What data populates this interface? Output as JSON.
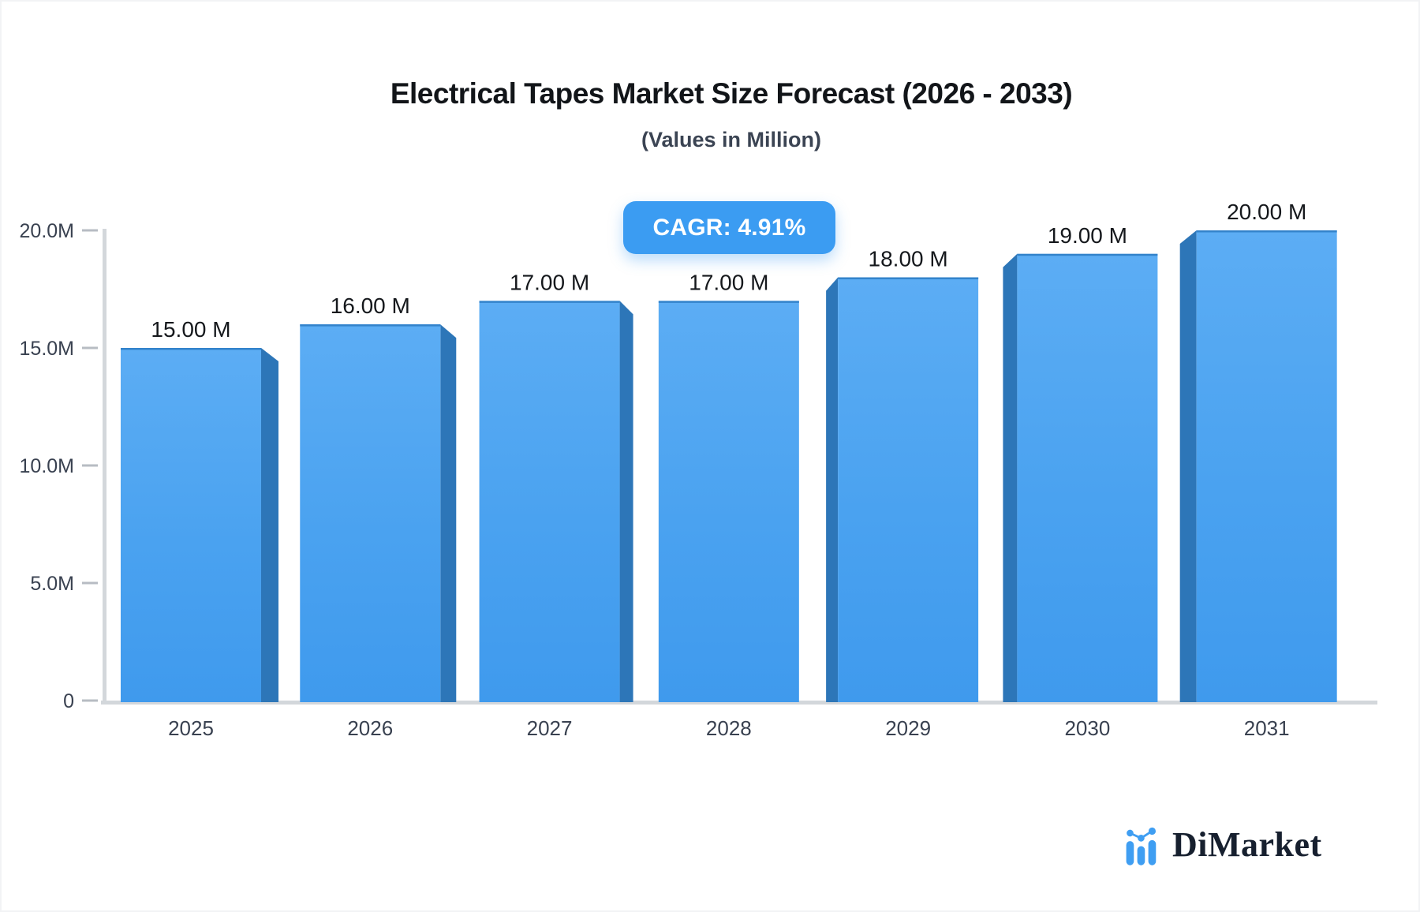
{
  "header": {
    "title": "Electrical Tapes Market Size Forecast (2026 - 2033)",
    "subtitle": "(Values in Million)"
  },
  "badge": {
    "label": "CAGR: 4.91%",
    "bg_color": "#3b9cf2",
    "text_color": "#ffffff"
  },
  "chart_data": {
    "type": "bar",
    "title": "Electrical Tapes Market Size Forecast (2026 - 2033)",
    "subtitle": "(Values in Million)",
    "categories": [
      "2025",
      "2026",
      "2027",
      "2028",
      "2029",
      "2030",
      "2031"
    ],
    "values": [
      15,
      16,
      17,
      17,
      18,
      19,
      20
    ],
    "value_labels": [
      "15.00 M",
      "16.00 M",
      "17.00 M",
      "17.00 M",
      "18.00 M",
      "19.00 M",
      "20.00 M"
    ],
    "unit": "Million",
    "xlabel": "",
    "ylabel": "",
    "ylim": [
      0,
      20
    ],
    "y_ticks": [
      0,
      5,
      10,
      15,
      20
    ],
    "y_tick_labels": [
      "0",
      "5.0M",
      "10.0M",
      "15.0M",
      "20.0M"
    ],
    "annotation": "CAGR: 4.91%",
    "grid": false,
    "legend": false,
    "bar_color": "#4aa2f0",
    "bar_top_edge_color": "#3383cb",
    "bar_side_color": "#2d76b8",
    "axis_color": "#d3d7db",
    "tick_color": "#b7bcc3",
    "axis_text_color": "#394150",
    "value_text_color": "#15181c"
  },
  "footer": {
    "brand": "DiMarket"
  }
}
